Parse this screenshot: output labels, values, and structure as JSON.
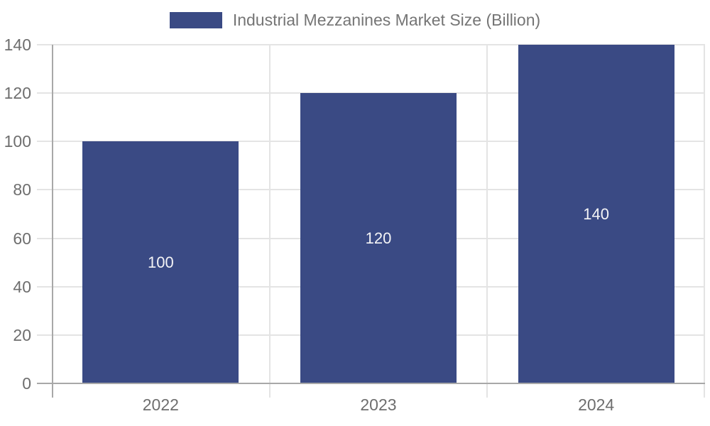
{
  "legend": {
    "label": "Industrial Mezzanines Market Size (Billion)"
  },
  "colors": {
    "bar": "#3a4a84",
    "gridline": "#e4e4e4",
    "axis_line": "#a8a8a8",
    "tick_text": "#6e6e6e",
    "legend_text": "#757575",
    "bar_label_text": "#f4f4f6",
    "background": "#ffffff"
  },
  "chart_data": {
    "type": "bar",
    "title": "Industrial Mezzanines Market Size (Billion)",
    "series": [
      {
        "name": "Industrial Mezzanines Market Size (Billion)",
        "values": [
          100,
          120,
          140
        ]
      }
    ],
    "categories": [
      "2022",
      "2023",
      "2024"
    ],
    "data_labels": [
      100,
      120,
      140
    ],
    "xlabel": "",
    "ylabel": "",
    "ylim": [
      0,
      140
    ],
    "y_ticks": [
      0,
      20,
      40,
      60,
      80,
      100,
      120,
      140
    ],
    "grid": true,
    "legend_position": "top-center"
  }
}
